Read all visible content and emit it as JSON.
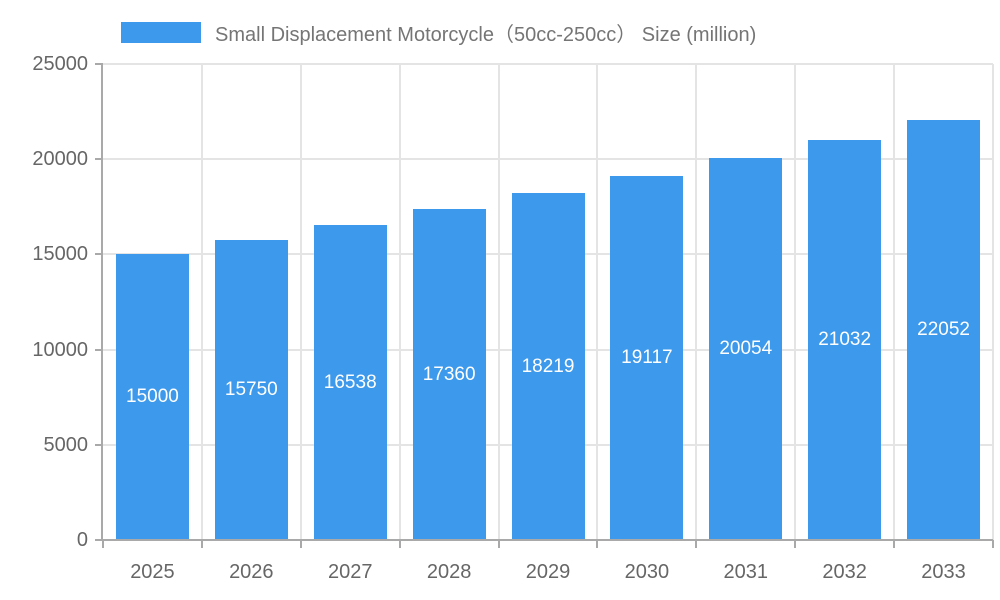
{
  "chart_data": {
    "type": "bar",
    "title": "",
    "legend": "Small Displacement Motorcycle（50cc-250cc） Size (million)",
    "categories": [
      "2025",
      "2026",
      "2027",
      "2028",
      "2029",
      "2030",
      "2031",
      "2032",
      "2033"
    ],
    "values": [
      15000,
      15750,
      16538,
      17360,
      18219,
      19117,
      20054,
      21032,
      22052
    ],
    "ylim": [
      0,
      25000
    ],
    "yticks": [
      0,
      5000,
      10000,
      15000,
      20000,
      25000
    ],
    "grid": true,
    "legend_position": "top-center",
    "colors": {
      "bar": "#3C99EC",
      "grid": "#E4E4E4",
      "axis": "#A9A9A9",
      "axis_text": "#666666",
      "legend_text": "#757575",
      "bar_label": "#FFFFFF",
      "background": "#FFFFFF"
    }
  }
}
